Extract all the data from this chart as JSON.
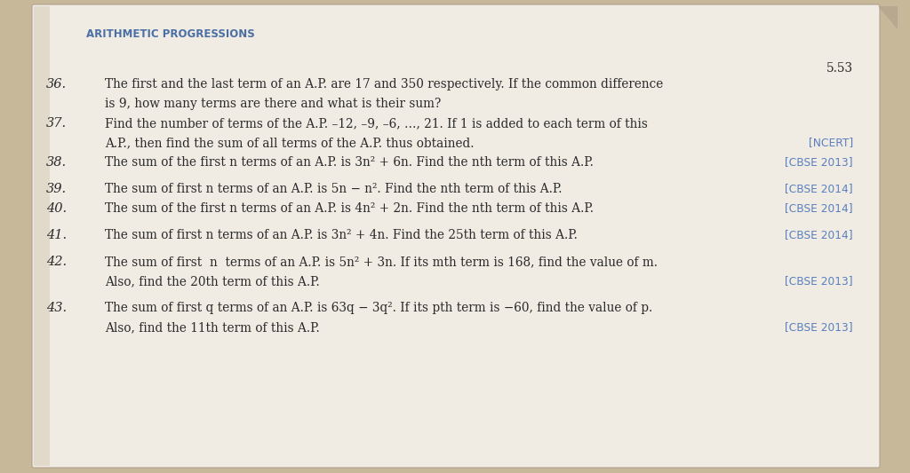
{
  "bg_color": "#c8b89a",
  "page_color": "#f0ece4",
  "title": "ARITHMETIC PROGRESSIONS",
  "title_color": "#4a6fa5",
  "title_fontsize": 8.5,
  "page_num": "5.53",
  "text_color": "#2a2a2a",
  "tag_color": "#5a7fbf",
  "main_fs": 9.8,
  "tag_fs": 8.8,
  "num_fs": 10.5,
  "questions": [
    {
      "num": "36.",
      "lines": [
        "The first and the last term of an A.P. are 17 and 350 respectively. If the common difference",
        "is 9, how many terms are there and what is their sum?"
      ],
      "tag": null,
      "tag_line": 1
    },
    {
      "num": "37.",
      "lines": [
        "Find the number of terms of the A.P. –12, –9, –6, …, 21. If 1 is added to each term of this",
        "A.P., then find the sum of all terms of the A.P. thus obtained."
      ],
      "tag": "[NCERT]",
      "tag_line": 1
    },
    {
      "num": "38.",
      "lines": [
        "The sum of the first n terms of an A.P. is 3n² + 6n. Find the nth term of this A.P."
      ],
      "tag": "[CBSE 2013]",
      "tag_line": 0
    },
    {
      "num": "39.",
      "lines": [
        "The sum of first n terms of an A.P. is 5n − n². Find the nth term of this A.P."
      ],
      "tag": "[CBSE 2014]",
      "tag_line": 0
    },
    {
      "num": "40.",
      "lines": [
        "The sum of the first n terms of an A.P. is 4n² + 2n. Find the nth term of this A.P."
      ],
      "tag": "[CBSE 2014]",
      "tag_line": 0
    },
    {
      "num": "41.",
      "lines": [
        "The sum of first n terms of an A.P. is 3n² + 4n. Find the 25th term of this A.P."
      ],
      "tag": "[CBSE 2014]",
      "tag_line": 0
    },
    {
      "num": "42.",
      "lines": [
        "The sum of first  n  terms of an A.P. is 5n² + 3n. If its mth term is 168, find the value of m.",
        "Also, find the 20th term of this A.P."
      ],
      "tag": "[CBSE 2013]",
      "tag_line": 1
    },
    {
      "num": "43.",
      "lines": [
        "The sum of first q terms of an A.P. is 63q − 3q². If its pth term is −60, find the value of p.",
        "Also, find the 11th term of this A.P."
      ],
      "tag": "[CBSE 2013]",
      "tag_line": 1
    }
  ]
}
